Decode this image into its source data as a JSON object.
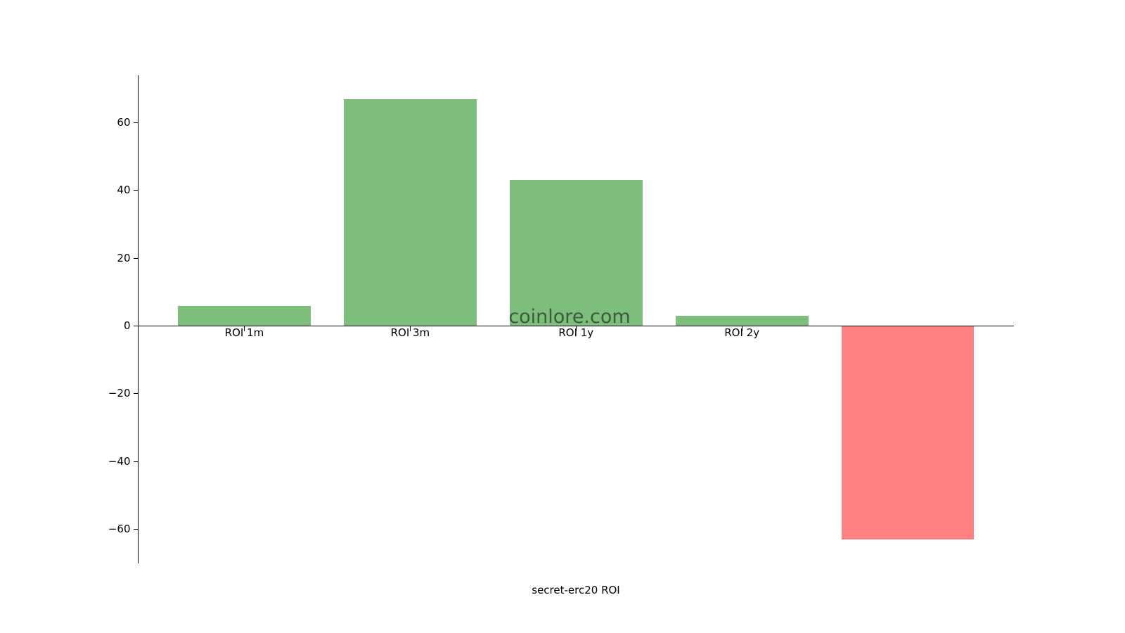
{
  "figure": {
    "watermark": "coinlore.com",
    "xlabel": "secret-erc20 ROI"
  },
  "chart_data": {
    "type": "bar",
    "title": "",
    "xlabel": "secret-erc20 ROI",
    "ylabel": "",
    "categories": [
      "ROI 1m",
      "ROI 3m",
      "ROI 1y",
      "ROI 2y",
      ""
    ],
    "values": [
      6,
      67,
      43,
      3,
      -63
    ],
    "yticks": [
      60,
      40,
      20,
      0,
      -20,
      -40,
      -60
    ],
    "ylim": [
      -70,
      74
    ],
    "grid": false,
    "legend_position": "none",
    "positive_color": "#7dbe7d",
    "negative_color": "#ff8080",
    "axis_color": "#000000",
    "watermark_color": "#3a5c38",
    "watermark_text": "coinlore.com"
  }
}
